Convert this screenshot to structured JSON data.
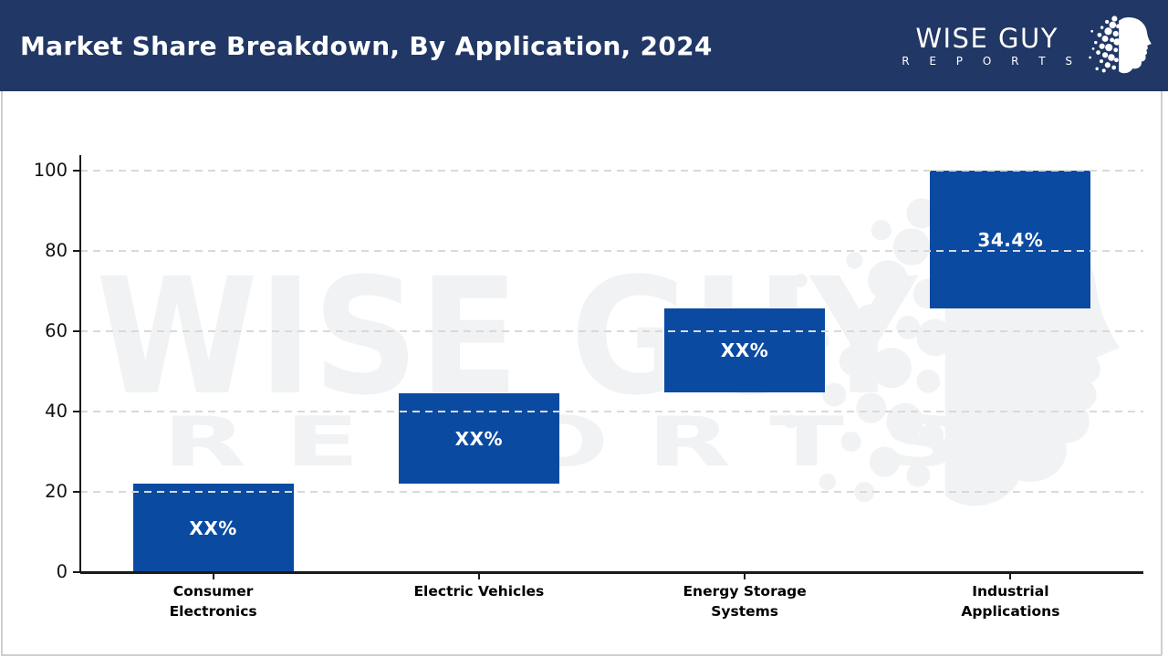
{
  "header": {
    "title": "Market Share Breakdown, By Application, 2024",
    "logo": {
      "line1": "WISE GUY",
      "line2": "R E P O R T S"
    }
  },
  "watermark": {
    "line1": "WISE GUY",
    "line2": "R E P O R T S"
  },
  "colors": {
    "header_bg": "#213765",
    "bar": "#0b4aa1",
    "grid": "#d9d9d9",
    "axis": "#1a1a1a",
    "watermark": "#f1f2f4",
    "frame": "#cfcfcf"
  },
  "chart_data": {
    "type": "waterfall",
    "title": "Market Share Breakdown, By Application, 2024",
    "categories": [
      "Consumer\nElectronics",
      "Electric Vehicles",
      "Energy Storage\nSystems",
      "Industrial\nApplications"
    ],
    "segments": [
      {
        "category": "Consumer Electronics",
        "start": 0,
        "end": 22,
        "label": "XX%"
      },
      {
        "category": "Electric Vehicles",
        "start": 22,
        "end": 44.5,
        "label": "XX%"
      },
      {
        "category": "Energy Storage Systems",
        "start": 44.8,
        "end": 65.6,
        "label": "XX%"
      },
      {
        "category": "Industrial Applications",
        "start": 65.6,
        "end": 100,
        "label": "34.4%"
      }
    ],
    "yticks": [
      0,
      20,
      40,
      60,
      80,
      100
    ],
    "ylim": [
      0,
      100
    ],
    "grid": "dashed-horizontal",
    "legend": "none",
    "bar_color": "#0b4aa1"
  }
}
